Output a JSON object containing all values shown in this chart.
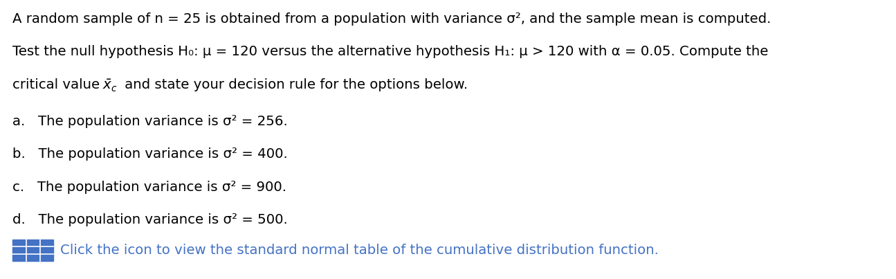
{
  "bg_color": "#ffffff",
  "text_color": "#000000",
  "figsize": [
    12.95,
    4.03
  ],
  "dpi": 100,
  "line1": "A random sample of n = 25 is obtained from a population with variance σ², and the sample mean is computed.",
  "line2": "Test the null hypothesis H₀: μ = 120 versus the alternative hypothesis H₁: μ > 120 with α = 0.05. Compute the",
  "item_a": "a.   The population variance is σ² = 256.",
  "item_b": "b.   The population variance is σ² = 400.",
  "item_c": "c.   The population variance is σ² = 900.",
  "item_d": "d.   The population variance is σ² = 500.",
  "footer": "Click the icon to view the standard normal table of the cumulative distribution function.",
  "font_size_main": 14.2,
  "font_size_items": 14.2,
  "icon_color": "#4472c4",
  "icon_color2": "#ffffff"
}
